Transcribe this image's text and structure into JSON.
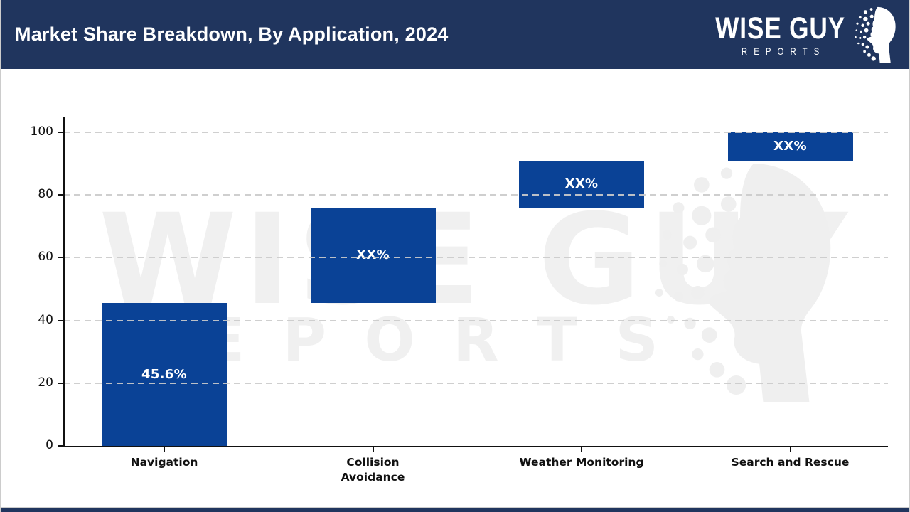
{
  "header": {
    "title": "Market Share Breakdown, By Application, 2024",
    "logo": {
      "primary": "WISE GUY",
      "secondary": "REPORTS"
    }
  },
  "watermark": {
    "primary": "WISE GUY",
    "secondary": "R E P O R T S"
  },
  "chart_data": {
    "type": "bar",
    "subtype": "waterfall",
    "title": "Market Share Breakdown, By Application, 2024",
    "categories": [
      "Navigation",
      "Collision\nAvoidance",
      "Weather Monitoring",
      "Search and Rescue"
    ],
    "segments": [
      {
        "category": "Navigation",
        "start": 0,
        "end": 45.6,
        "label": "45.6%"
      },
      {
        "category": "Collision Avoidance",
        "start": 45.6,
        "end": 76,
        "label": "XX%"
      },
      {
        "category": "Weather Monitoring",
        "start": 76,
        "end": 91,
        "label": "XX%"
      },
      {
        "category": "Search and Rescue",
        "start": 91,
        "end": 100,
        "label": "XX%"
      }
    ],
    "ylim": [
      0,
      100
    ],
    "yticks": [
      0,
      20,
      40,
      60,
      80,
      100
    ],
    "xlabel": "",
    "ylabel": "",
    "grid": "horizontal-dashed",
    "legend": "none",
    "bar_color": "#0a4296",
    "bar_label_color": "#ffffff"
  },
  "colors": {
    "header_bg": "#20355e",
    "footer_bg": "#20355e",
    "axis": "#111111",
    "grid": "#cbcbcb",
    "watermark": "#f0f0f0"
  }
}
